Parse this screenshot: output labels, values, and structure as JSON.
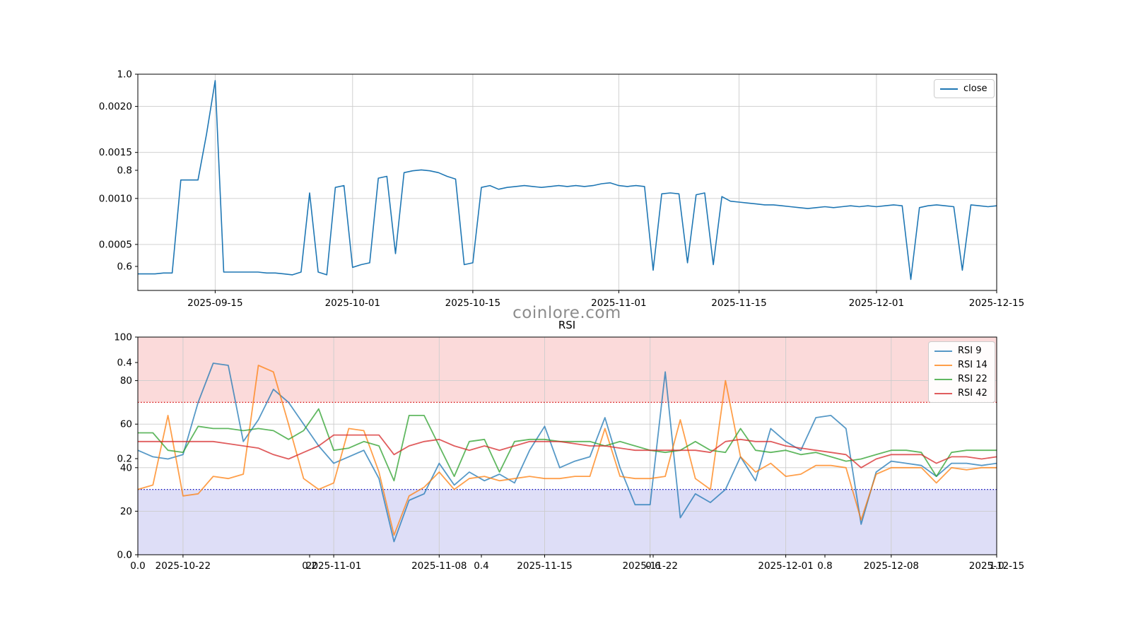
{
  "watermark": "coinlore.com",
  "overlay_axis": {
    "yticks": [
      "1.0",
      "0.8",
      "0.6",
      "0.4",
      "0.2",
      "0.0"
    ],
    "xticks": [
      "0.0",
      "0.2",
      "0.4",
      "0.6",
      "0.8",
      "1.0"
    ]
  },
  "chart_data": [
    {
      "id": "price",
      "type": "line",
      "title": "",
      "x_start": "2025-09-06",
      "x_end": "2025-12-15",
      "ylim": [
        0,
        0.00235
      ],
      "grid": true,
      "legend_position": "top-right",
      "yticks": [
        {
          "value": 0.0005,
          "label": "0.0005"
        },
        {
          "value": 0.001,
          "label": "0.0010"
        },
        {
          "value": 0.0015,
          "label": "0.0015"
        },
        {
          "value": 0.002,
          "label": "0.0020"
        }
      ],
      "xticks": [
        "2025-09-15",
        "2025-10-01",
        "2025-10-15",
        "2025-11-01",
        "2025-11-15",
        "2025-12-01",
        "2025-12-15"
      ],
      "series": [
        {
          "name": "close",
          "color": "#1f77b4",
          "width": 1.6,
          "opacity": 1,
          "values": [
            0.00018,
            0.00018,
            0.00018,
            0.00019,
            0.00019,
            0.0012,
            0.0012,
            0.0012,
            0.0017,
            0.00228,
            0.0002,
            0.0002,
            0.0002,
            0.0002,
            0.0002,
            0.00019,
            0.00019,
            0.00018,
            0.00017,
            0.0002,
            0.00106,
            0.0002,
            0.00017,
            0.00112,
            0.00114,
            0.00025,
            0.00028,
            0.0003,
            0.00122,
            0.00124,
            0.0004,
            0.00128,
            0.0013,
            0.00131,
            0.0013,
            0.00128,
            0.00124,
            0.00121,
            0.00028,
            0.0003,
            0.00112,
            0.00114,
            0.0011,
            0.00112,
            0.00113,
            0.00114,
            0.00113,
            0.00112,
            0.00113,
            0.00114,
            0.00113,
            0.00114,
            0.00113,
            0.00114,
            0.00116,
            0.00117,
            0.00114,
            0.00113,
            0.00114,
            0.00113,
            0.00022,
            0.00105,
            0.00106,
            0.00105,
            0.0003,
            0.00104,
            0.00106,
            0.00028,
            0.00102,
            0.00097,
            0.00096,
            0.00095,
            0.00094,
            0.00093,
            0.00093,
            0.00092,
            0.00091,
            0.0009,
            0.00089,
            0.0009,
            0.00091,
            0.0009,
            0.00091,
            0.00092,
            0.00091,
            0.00092,
            0.00091,
            0.00092,
            0.00093,
            0.00092,
            0.00012,
            0.0009,
            0.00092,
            0.00093,
            0.00092,
            0.00091,
            0.00022,
            0.00093,
            0.00092,
            0.00091,
            0.00092
          ]
        }
      ]
    },
    {
      "id": "rsi",
      "type": "line",
      "title": "RSI",
      "x_start": "2025-10-19",
      "x_end": "2025-12-15",
      "ylim": [
        0,
        100
      ],
      "grid": true,
      "legend_position": "top-right",
      "overbought_level": 70,
      "oversold_level": 30,
      "bands": [
        {
          "from": 70,
          "to": 100,
          "color": "#fbdada",
          "name": "overbought-zone"
        },
        {
          "from": 0,
          "to": 30,
          "color": "#dedef7",
          "name": "oversold-zone"
        }
      ],
      "hlines": [
        {
          "value": 70,
          "color": "#d40000",
          "style": "dotted"
        },
        {
          "value": 30,
          "color": "#0000b8",
          "style": "dotted"
        }
      ],
      "yticks": [
        {
          "value": 0,
          "label": "0"
        },
        {
          "value": 20,
          "label": "20"
        },
        {
          "value": 40,
          "label": "40"
        },
        {
          "value": 60,
          "label": "60"
        },
        {
          "value": 80,
          "label": "80"
        },
        {
          "value": 100,
          "label": "100"
        }
      ],
      "xticks": [
        "2025-10-22",
        "2025-11-01",
        "2025-11-08",
        "2025-11-15",
        "2025-11-22",
        "2025-12-01",
        "2025-12-08",
        "2025-12-15"
      ],
      "series": [
        {
          "name": "RSI 9",
          "color": "#1f77b4",
          "width": 1.8,
          "opacity": 0.75,
          "values": [
            48,
            45,
            44,
            46,
            70,
            88,
            87,
            52,
            62,
            76,
            70,
            60,
            50,
            42,
            45,
            48,
            35,
            6,
            25,
            28,
            42,
            32,
            38,
            34,
            37,
            33,
            48,
            59,
            40,
            43,
            45,
            63,
            40,
            23,
            23,
            84,
            17,
            28,
            24,
            30,
            45,
            34,
            58,
            52,
            48,
            63,
            64,
            58,
            14,
            38,
            43,
            42,
            41,
            36,
            42,
            42,
            41,
            42
          ]
        },
        {
          "name": "RSI 14",
          "color": "#ff7f0e",
          "width": 1.8,
          "opacity": 0.75,
          "values": [
            30,
            32,
            64,
            27,
            28,
            36,
            35,
            37,
            87,
            84,
            60,
            35,
            30,
            33,
            58,
            57,
            38,
            9,
            27,
            31,
            38,
            30,
            35,
            36,
            34,
            35,
            36,
            35,
            35,
            36,
            36,
            58,
            36,
            35,
            35,
            36,
            62,
            35,
            30,
            80,
            45,
            38,
            42,
            36,
            37,
            41,
            41,
            40,
            16,
            37,
            40,
            40,
            40,
            33,
            40,
            39,
            40,
            40
          ]
        },
        {
          "name": "RSI 22",
          "color": "#2ca02c",
          "width": 1.8,
          "opacity": 0.75,
          "values": [
            56,
            56,
            48,
            47,
            59,
            58,
            58,
            57,
            58,
            57,
            53,
            57,
            67,
            48,
            49,
            52,
            50,
            34,
            64,
            64,
            50,
            36,
            52,
            53,
            38,
            52,
            53,
            53,
            52,
            52,
            52,
            50,
            52,
            50,
            48,
            47,
            48,
            52,
            48,
            47,
            58,
            48,
            47,
            48,
            46,
            47,
            45,
            43,
            44,
            46,
            48,
            48,
            47,
            36,
            47,
            48,
            48,
            48
          ]
        },
        {
          "name": "RSI 42",
          "color": "#d62728",
          "width": 1.8,
          "opacity": 0.75,
          "values": [
            52,
            52,
            52,
            52,
            52,
            52,
            51,
            50,
            49,
            46,
            44,
            47,
            50,
            55,
            55,
            55,
            55,
            46,
            50,
            52,
            53,
            50,
            48,
            50,
            48,
            50,
            52,
            52,
            52,
            51,
            50,
            50,
            49,
            48,
            48,
            48,
            48,
            48,
            47,
            52,
            53,
            52,
            52,
            50,
            49,
            48,
            47,
            46,
            40,
            44,
            46,
            46,
            46,
            42,
            45,
            45,
            44,
            45
          ]
        }
      ]
    }
  ]
}
